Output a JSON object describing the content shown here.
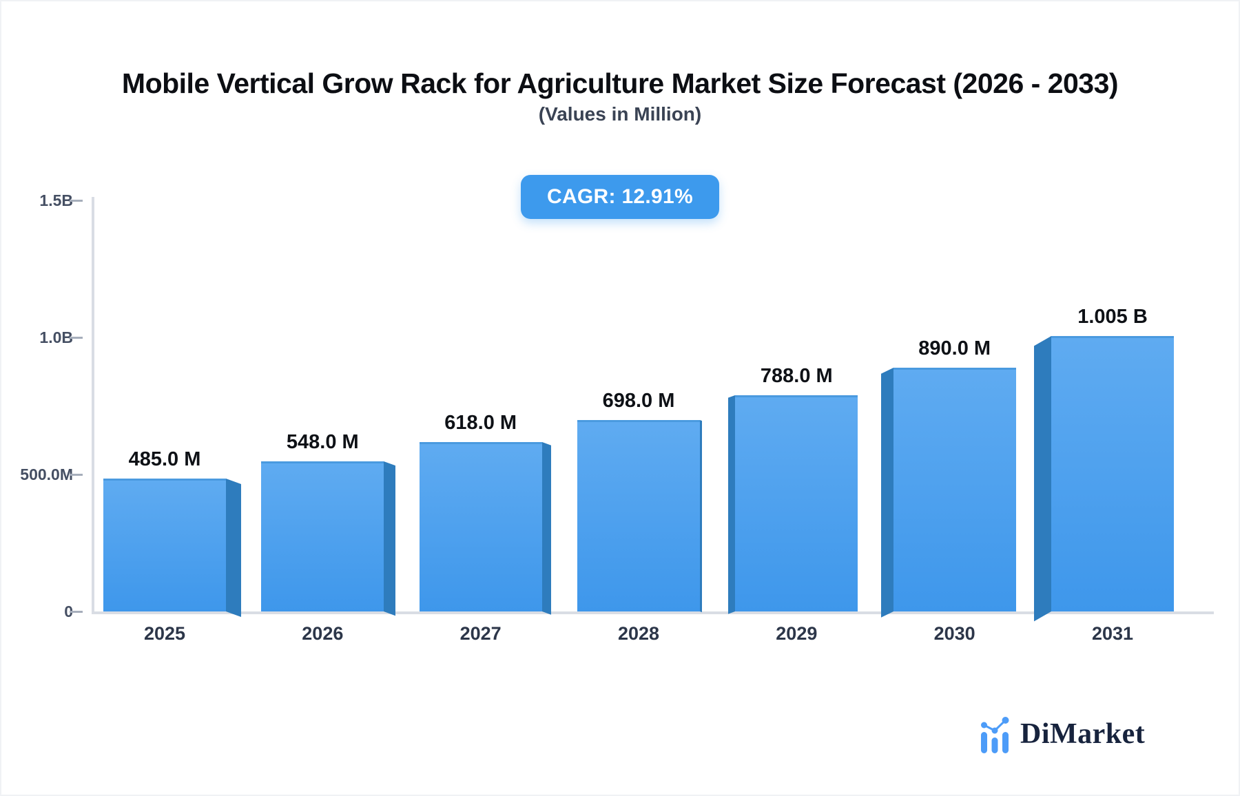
{
  "title": "Mobile Vertical Grow Rack for Agriculture Market Size Forecast (2026 - 2033)",
  "subtitle": "(Values in Million)",
  "badge": {
    "label": "CAGR: 12.91%",
    "bg_color": "#3d9aed",
    "text_color": "#ffffff"
  },
  "logo": {
    "text": "DiMarket",
    "icon": "bar-line-chart-icon",
    "icon_color": "#4d9cf8",
    "text_color": "#17233d"
  },
  "chart_data": {
    "type": "bar",
    "title": "Mobile Vertical Grow Rack for Agriculture Market Size Forecast (2026 - 2033)",
    "subtitle": "(Values in Million)",
    "cagr_label": "CAGR: 12.91%",
    "categories": [
      "2025",
      "2026",
      "2027",
      "2028",
      "2029",
      "2030",
      "2031"
    ],
    "values": [
      485,
      548,
      618,
      698,
      788,
      890,
      1005
    ],
    "value_labels": [
      "485.0 M",
      "548.0 M",
      "618.0 M",
      "698.0 M",
      "788.0 M",
      "890.0 M",
      "1.005 B"
    ],
    "unit": "Million",
    "xlabel": "",
    "ylabel": "",
    "ylim": [
      0,
      1500
    ],
    "yticks": [
      {
        "value": 0,
        "label": "0"
      },
      {
        "value": 500,
        "label": "500.0M"
      },
      {
        "value": 1000,
        "label": "1.0B"
      },
      {
        "value": 1500,
        "label": "1.5B"
      }
    ],
    "grid": false,
    "legend": null,
    "style": {
      "bar_face_gradient_top": "#5fabf1",
      "bar_face_gradient_bottom": "#3e97eb",
      "bar_face_top_edge": "#4a9adf",
      "bar_side_color": "#2e7cbd",
      "axis_line_color": "#d9dde4",
      "tick_dash_color": "#a6aebb",
      "ytick_label_color": "#454f63",
      "xtick_label_color": "#2c3649",
      "value_label_color": "#0e1116",
      "effect": "3d-perspective-bars"
    }
  }
}
